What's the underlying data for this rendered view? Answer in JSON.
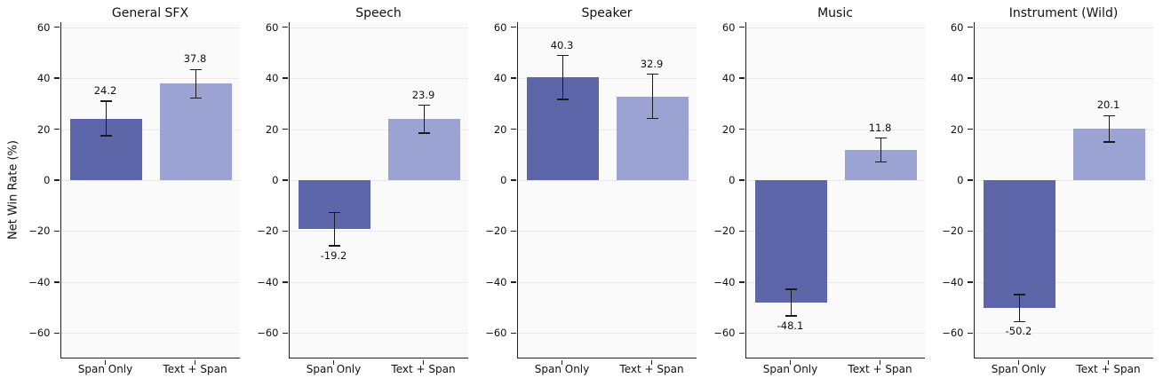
{
  "chart_data": {
    "type": "bar",
    "categories": [
      "Span Only",
      "Text + Span"
    ],
    "ylabel": "Net Win Rate (%)",
    "xlabel": "",
    "ylim": [
      -70,
      62
    ],
    "yticks": [
      -60,
      -40,
      -20,
      0,
      20,
      40,
      60
    ],
    "grid": true,
    "legend": "none",
    "bar_colors": [
      "#5d66a8",
      "#9aa3d1"
    ],
    "error_bar_color": "#1a1a1a",
    "plot_background": "#fafafa",
    "figure_background": "#ffffff",
    "panels": [
      {
        "title": "General SFX",
        "values": [
          24.2,
          37.8
        ],
        "errors": [
          6.9,
          5.6
        ],
        "labels": [
          "24.2",
          "37.8"
        ]
      },
      {
        "title": "Speech",
        "values": [
          -19.2,
          23.9
        ],
        "errors": [
          6.5,
          5.5
        ],
        "labels": [
          "-19.2",
          "23.9"
        ]
      },
      {
        "title": "Speaker",
        "values": [
          40.3,
          32.9
        ],
        "errors": [
          8.6,
          8.7
        ],
        "labels": [
          "40.3",
          "32.9"
        ]
      },
      {
        "title": "Music",
        "values": [
          -48.1,
          11.8
        ],
        "errors": [
          5.3,
          4.7
        ],
        "labels": [
          "-48.1",
          "11.8"
        ]
      },
      {
        "title": "Instrument (Wild)",
        "values": [
          -50.2,
          20.1
        ],
        "errors": [
          5.3,
          5.2
        ],
        "labels": [
          "-50.2",
          "20.1"
        ]
      }
    ]
  }
}
